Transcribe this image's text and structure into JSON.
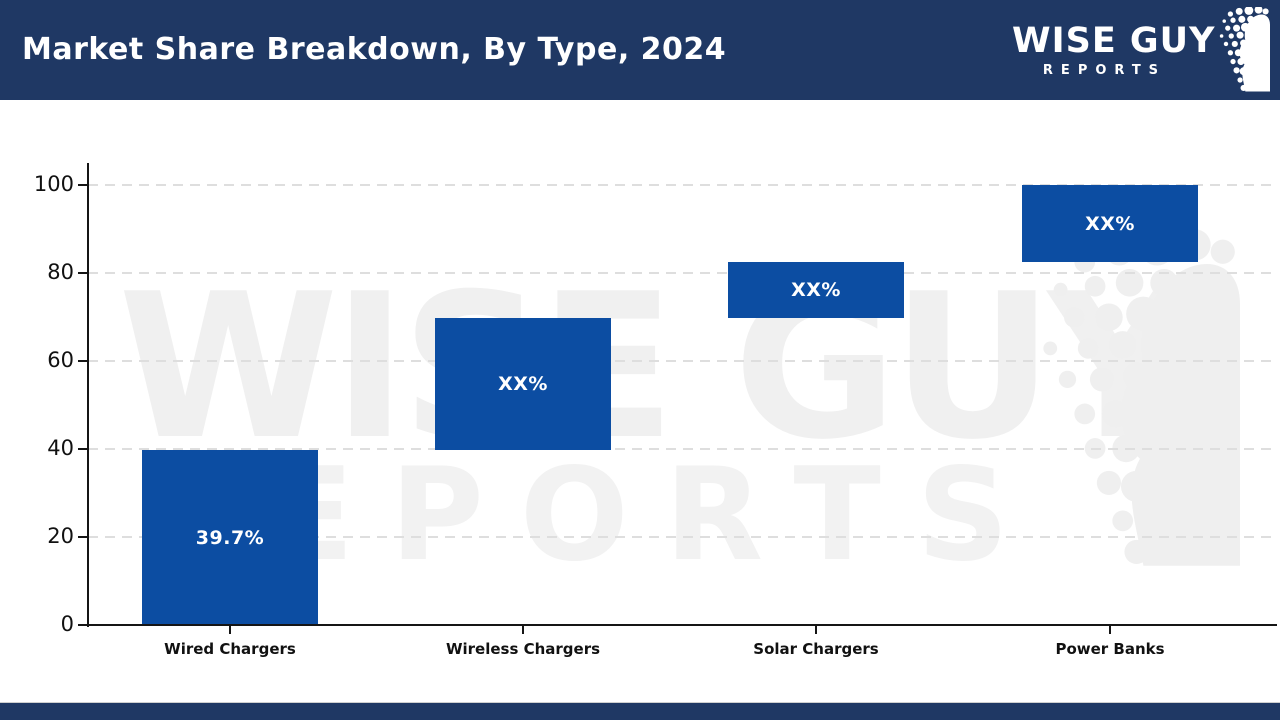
{
  "header": {
    "title": "Market Share Breakdown, By Type, 2024",
    "bg_color": "#1f3864",
    "logo": {
      "line1": "WISE GUY",
      "line2": "REPORTS"
    }
  },
  "watermark": {
    "line1": "WISE GUY",
    "line2": "REPORTS"
  },
  "footer": {
    "bg_color": "#1f3864"
  },
  "chart_data": {
    "type": "bar",
    "variant": "waterfall",
    "title": "Market Share Breakdown, By Type, 2024",
    "categories": [
      "Wired Chargers",
      "Wireless Chargers",
      "Solar Chargers",
      "Power Banks"
    ],
    "segments": [
      {
        "category": "Wired Chargers",
        "start": 0,
        "end": 39.7,
        "label": "39.7%"
      },
      {
        "category": "Wireless Chargers",
        "start": 39.7,
        "end": 69.7,
        "label": "XX%"
      },
      {
        "category": "Solar Chargers",
        "start": 69.7,
        "end": 82.5,
        "label": "XX%"
      },
      {
        "category": "Power Banks",
        "start": 82.5,
        "end": 100,
        "label": "XX%"
      }
    ],
    "ylim": [
      0,
      100
    ],
    "yticks": [
      0,
      20,
      40,
      60,
      80,
      100
    ],
    "xlabel": "",
    "ylabel": "",
    "grid": "horizontal-dashed",
    "legend": "none",
    "bar_color": "#0c4da2",
    "bar_label_color": "#ffffff",
    "axis_color": "#151515",
    "gridline_color": "#dedede"
  }
}
